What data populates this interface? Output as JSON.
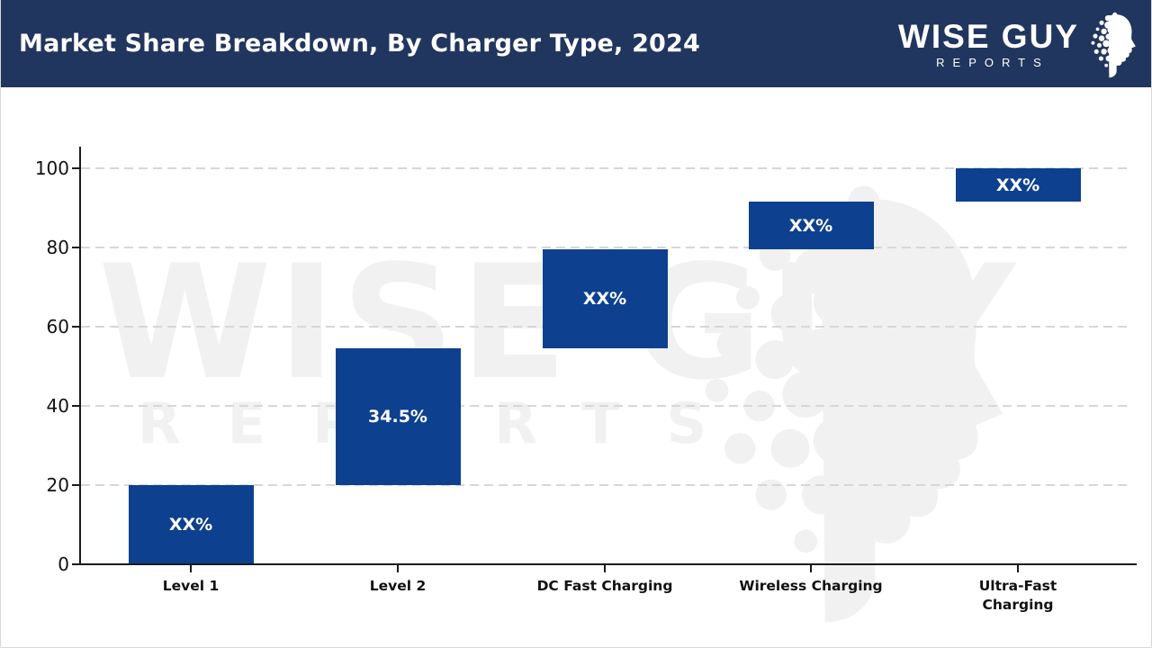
{
  "header": {
    "title": "Market Share Breakdown, By Charger Type, 2024",
    "logo": {
      "line1": "WISE GUY",
      "line2": "REPORTS"
    }
  },
  "watermark": {
    "line1": "WISE GUY",
    "line2": "REPORTS"
  },
  "colors": {
    "header_bg": "#21365E",
    "bar": "#0D418F",
    "grid": "#D7D7D7",
    "axis": "#1A1A1A",
    "watermark": "#F1F1F1",
    "bar_label_text": "#FFFFFF"
  },
  "chart_data": {
    "type": "bar",
    "subtype": "waterfall",
    "title": "Market Share Breakdown, By Charger Type, 2024",
    "categories": [
      "Level 1",
      "Level 2",
      "DC Fast Charging",
      "Wireless Charging",
      "Ultra-Fast\nCharging"
    ],
    "segments": [
      {
        "category": "Level 1",
        "start": 0,
        "end": 20,
        "label": "XX%"
      },
      {
        "category": "Level 2",
        "start": 20,
        "end": 54.5,
        "label": "34.5%"
      },
      {
        "category": "DC Fast Charging",
        "start": 54.5,
        "end": 79.5,
        "label": "XX%"
      },
      {
        "category": "Wireless Charging",
        "start": 79.5,
        "end": 91.5,
        "label": "XX%"
      },
      {
        "category": "Ultra-Fast Charging",
        "start": 91.5,
        "end": 100,
        "label": "XX%"
      }
    ],
    "values": [
      20,
      34.5,
      25,
      12,
      8.5
    ],
    "yticks": [
      0,
      20,
      40,
      60,
      80,
      100
    ],
    "ylim": [
      0,
      105.5
    ],
    "xlabel": "",
    "ylabel": "",
    "grid": "horizontal-dashed",
    "legend": "none"
  }
}
